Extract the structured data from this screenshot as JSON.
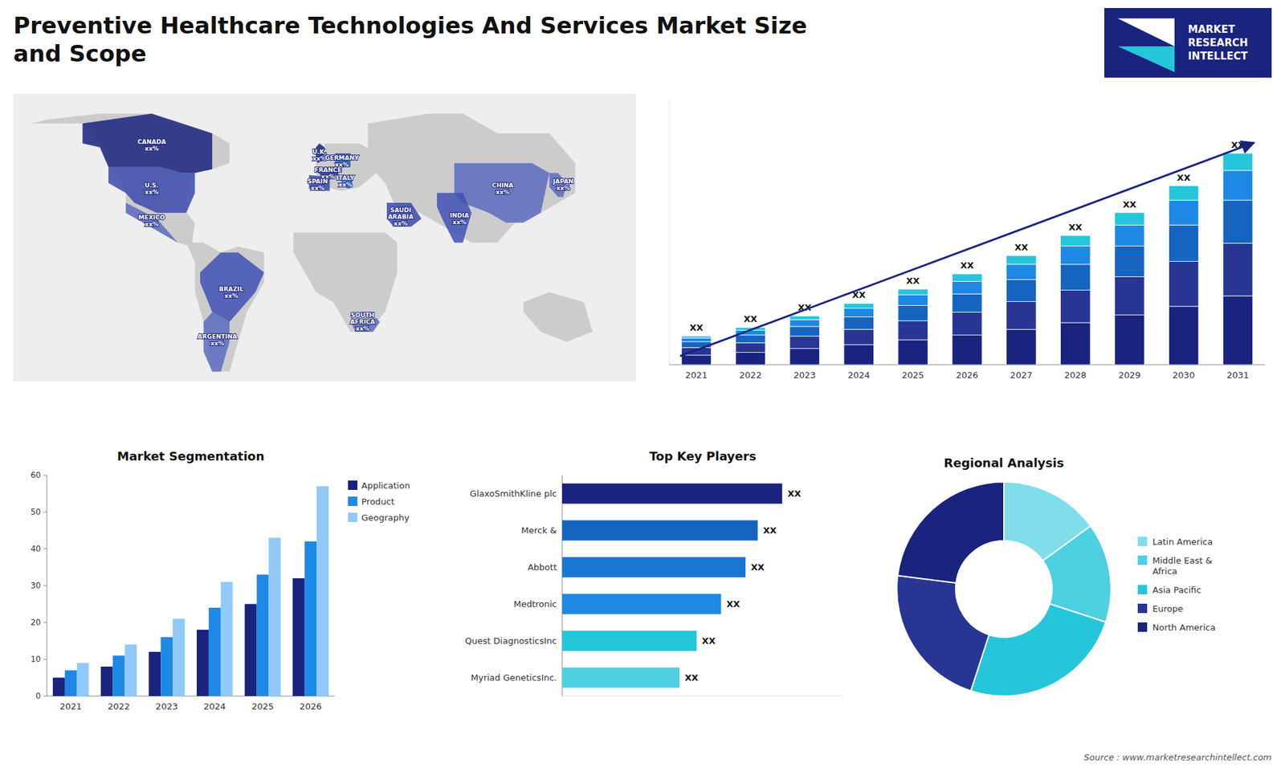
{
  "title": "Preventive Healthcare Technologies And Services Market Size\nand Scope",
  "logo": "MARKET\nRESEARCH\nINTELLECT",
  "source": "Source : www.marketresearchintellect.com",
  "chart_data": [
    {
      "type": "map",
      "categories": [
        "U.S.",
        "CANADA",
        "MEXICO",
        "BRAZIL",
        "ARGENTINA",
        "U.K.",
        "FRANCE",
        "SPAIN",
        "GERMANY",
        "ITALY",
        "SAUDI\nARABIA",
        "SOUTH\nAFRICA",
        "CHINA",
        "INDIA",
        "JAPAN"
      ],
      "annotations": [
        "xx%",
        "xx%",
        "xx%",
        "xx%",
        "xx%",
        "xx%",
        "xx%",
        "xx%",
        "xx%",
        "xx%",
        "xx%",
        "xx%",
        "xx%",
        "xx%",
        "xx%"
      ],
      "colors": [
        "#3949ab",
        "#1a237e",
        "#5c6bc0",
        "#3f51b5",
        "#5c6bc0",
        "#1a237e",
        "#283593",
        "#3949ab",
        "#1565c0",
        "#1e88e5",
        "#3949ab",
        "#5c6bc0",
        "#5c6bc0",
        "#3f51b5",
        "#5c6bc0"
      ]
    },
    {
      "type": "bar",
      "stacked": true,
      "categories": [
        "2021",
        "2022",
        "2023",
        "2024",
        "2025",
        "2026",
        "2027",
        "2028",
        "2029",
        "2030",
        "2031"
      ],
      "series": [
        {
          "color": "#1a237e",
          "values": [
            1,
            1.3,
            1.7,
            2.1,
            2.6,
            3.1,
            3.7,
            4.4,
            5.2,
            6.1,
            7.2
          ]
        },
        {
          "color": "#283593",
          "values": [
            0.8,
            1.0,
            1.3,
            1.6,
            2.0,
            2.4,
            2.9,
            3.4,
            4.0,
            4.7,
            5.5
          ]
        },
        {
          "color": "#1565c0",
          "values": [
            0.6,
            0.8,
            1.0,
            1.3,
            1.6,
            1.9,
            2.3,
            2.7,
            3.2,
            3.8,
            4.5
          ]
        },
        {
          "color": "#1e88e5",
          "values": [
            0.4,
            0.5,
            0.7,
            0.9,
            1.1,
            1.3,
            1.6,
            1.9,
            2.2,
            2.6,
            3.1
          ]
        },
        {
          "color": "#26c6da",
          "values": [
            0.2,
            0.3,
            0.4,
            0.5,
            0.6,
            0.8,
            0.9,
            1.1,
            1.3,
            1.5,
            1.8
          ]
        }
      ],
      "value_labels": [
        "XX",
        "XX",
        "XX",
        "XX",
        "XX",
        "XX",
        "XX",
        "XX",
        "XX",
        "XX",
        "XX"
      ],
      "ylim": [
        0,
        27.625
      ],
      "tick_labels": "x",
      "grid": false
    },
    {
      "type": "bar",
      "title": "Market Segmentation",
      "categories": [
        "2021",
        "2022",
        "2023",
        "2024",
        "2025",
        "2026"
      ],
      "series": [
        {
          "name": "Application",
          "color": "#1a237e",
          "values": [
            5,
            8,
            12,
            18,
            25,
            32
          ]
        },
        {
          "name": "Product",
          "color": "#1e88e5",
          "values": [
            7,
            11,
            16,
            24,
            33,
            42
          ]
        },
        {
          "name": "Geography",
          "color": "#90caf9",
          "values": [
            9,
            14,
            21,
            31,
            43,
            57
          ]
        }
      ],
      "ylim": [
        0,
        60
      ],
      "yticks": [
        0,
        10,
        20,
        30,
        40,
        50,
        60
      ],
      "legend": "right",
      "grid": false
    },
    {
      "type": "bar",
      "orientation": "horizontal",
      "title": "Top Key Players",
      "categories": [
        "GlaxoSmithKline plc",
        "Merck &",
        "Abbott",
        "Medtronic",
        "Quest DiagnosticsInc",
        "Myriad GeneticsInc."
      ],
      "values": [
        90,
        80,
        75,
        65,
        55,
        48
      ],
      "colors": [
        "#1a237e",
        "#1565c0",
        "#1976d2",
        "#1e88e5",
        "#26c6da",
        "#4dd0e1"
      ],
      "value_labels": [
        "XX",
        "XX",
        "XX",
        "XX",
        "XX",
        "XX"
      ],
      "xlim": [
        0,
        115
      ],
      "tick_labels": "y",
      "grid": false
    },
    {
      "type": "donut",
      "title": "Regional Analysis",
      "categories": [
        "Latin America",
        "Middle East &\nAfrica",
        "Asia Pacific",
        "Europe",
        "North America"
      ],
      "values": [
        15,
        15,
        25,
        22,
        23
      ],
      "colors": [
        "#80deea",
        "#4dd0e1",
        "#26c6da",
        "#283593",
        "#1a237e"
      ],
      "legend": "right"
    }
  ]
}
